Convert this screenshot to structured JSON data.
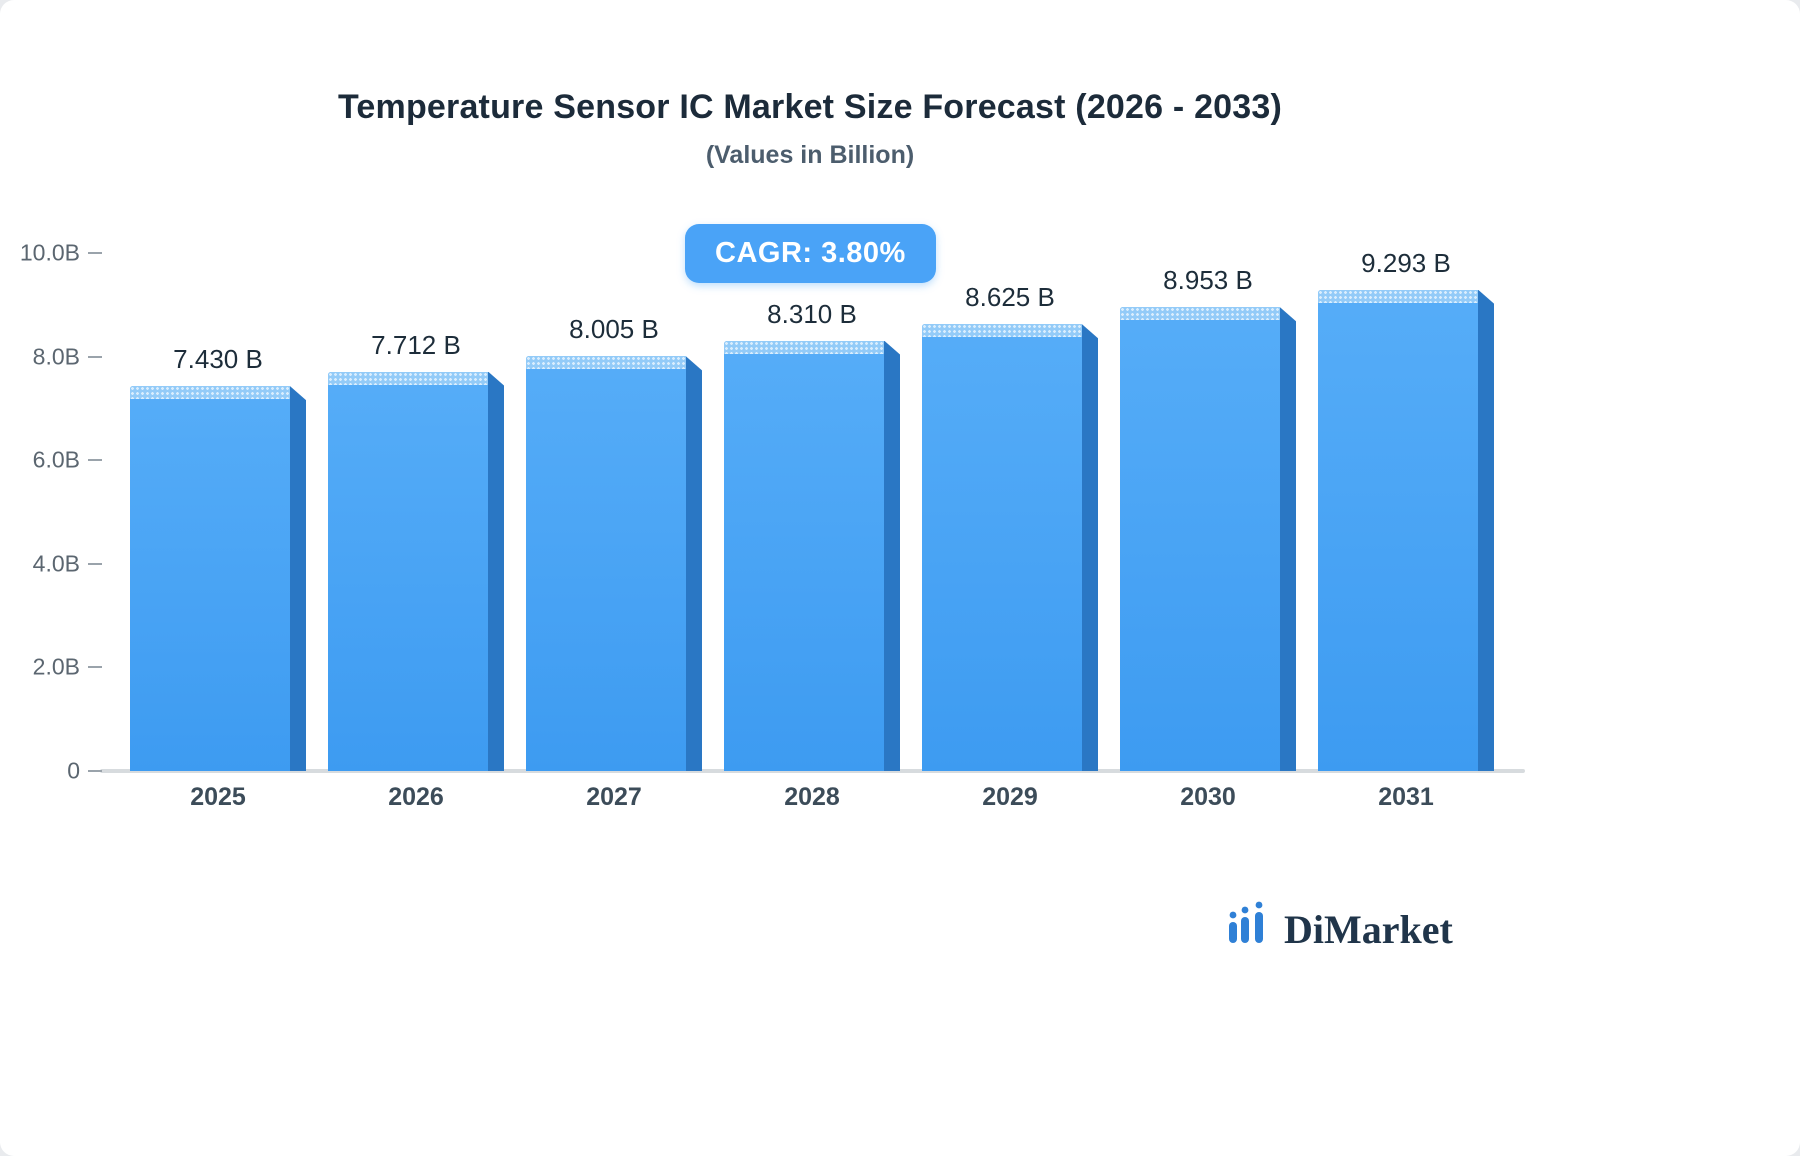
{
  "header": {
    "title": "Temperature Sensor IC Market Size Forecast (2026 - 2033)",
    "subtitle": "(Values in Billion)"
  },
  "badge": {
    "label": "CAGR: 3.80%"
  },
  "chart_data": {
    "type": "bar",
    "title": "Temperature Sensor IC Market Size Forecast (2026 - 2033)",
    "subtitle": "(Values in Billion)",
    "categories": [
      "2025",
      "2026",
      "2027",
      "2028",
      "2029",
      "2030",
      "2031"
    ],
    "values": [
      7.43,
      7.712,
      8.005,
      8.31,
      8.625,
      8.953,
      9.293
    ],
    "value_labels": [
      "7.430 B",
      "7.712 B",
      "8.005 B",
      "8.310 B",
      "8.625 B",
      "8.953 B",
      "9.293 B"
    ],
    "ylim": [
      0,
      10
    ],
    "yticks": [
      {
        "value": 0,
        "label": "0"
      },
      {
        "value": 2,
        "label": "2.0B"
      },
      {
        "value": 4,
        "label": "4.0B"
      },
      {
        "value": 6,
        "label": "6.0B"
      },
      {
        "value": 8,
        "label": "8.0B"
      },
      {
        "value": 10,
        "label": "10.0B"
      }
    ],
    "grid": false,
    "legend": false,
    "annotations": [
      "CAGR: 3.80%"
    ]
  },
  "logo": {
    "text": "DiMarket"
  },
  "colors": {
    "bar_face_top": "#56adf8",
    "bar_face_bottom": "#3d9bf1",
    "bar_side": "#2a77c4",
    "bar_topband": "#93cbf8",
    "badge_bg": "#4aa3f7",
    "logo_blue": "#2f80d6",
    "title_color": "#1c2b3a"
  }
}
